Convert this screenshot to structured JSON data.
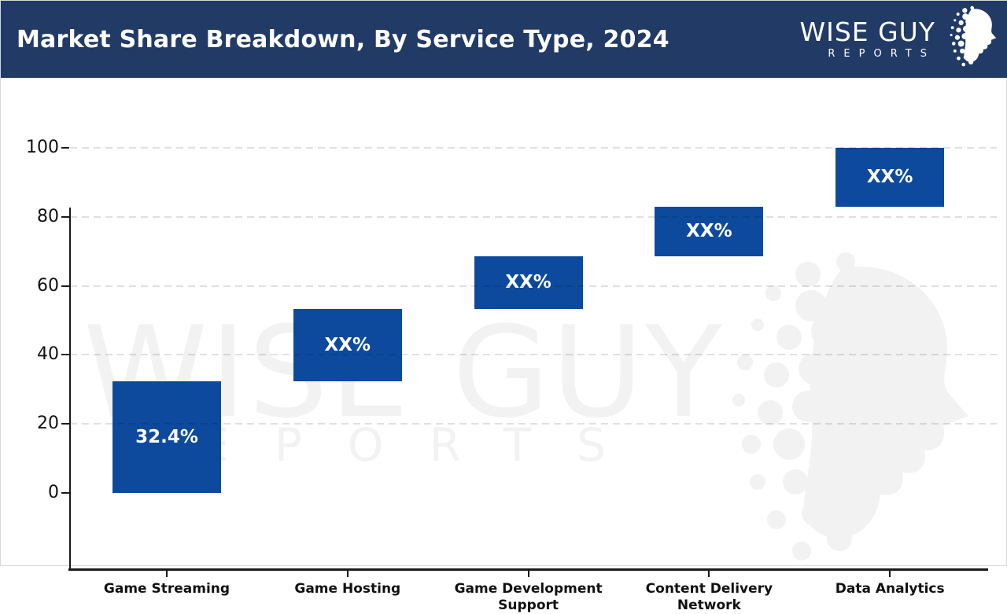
{
  "brand": {
    "primary": "WISE GUY",
    "secondary": "REPORTS"
  },
  "header": {
    "title": "Market Share Breakdown, By Service Type, 2024"
  },
  "chart_data": {
    "type": "bar",
    "subtype": "floating-waterfall",
    "title": "Market Share Breakdown, By Service Type, 2024",
    "categories": [
      "Game Streaming",
      "Game Hosting",
      "Game Development Support",
      "Content Delivery Network",
      "Data Analytics"
    ],
    "segments": [
      {
        "category": "Game Streaming",
        "from": 0,
        "to": 32.4,
        "label": "32.4%"
      },
      {
        "category": "Game Hosting",
        "from": 32.4,
        "to": 53.4,
        "label": "XX%"
      },
      {
        "category": "Game Development Support",
        "from": 53.4,
        "to": 68.6,
        "label": "XX%"
      },
      {
        "category": "Content Delivery Network",
        "from": 68.6,
        "to": 83.0,
        "label": "XX%"
      },
      {
        "category": "Data Analytics",
        "from": 83.0,
        "to": 100.0,
        "label": "XX%"
      }
    ],
    "yticks": [
      0,
      20,
      40,
      60,
      80,
      100
    ],
    "ylim": [
      0,
      105
    ],
    "xlabel": "",
    "ylabel": "",
    "grid": "dashed-horizontal",
    "legend": "none",
    "bar_color": "#0d4a9e",
    "bar_label_color": "#ffffff",
    "header_color": "#213a66",
    "watermark_color": "#f2f2f2"
  }
}
